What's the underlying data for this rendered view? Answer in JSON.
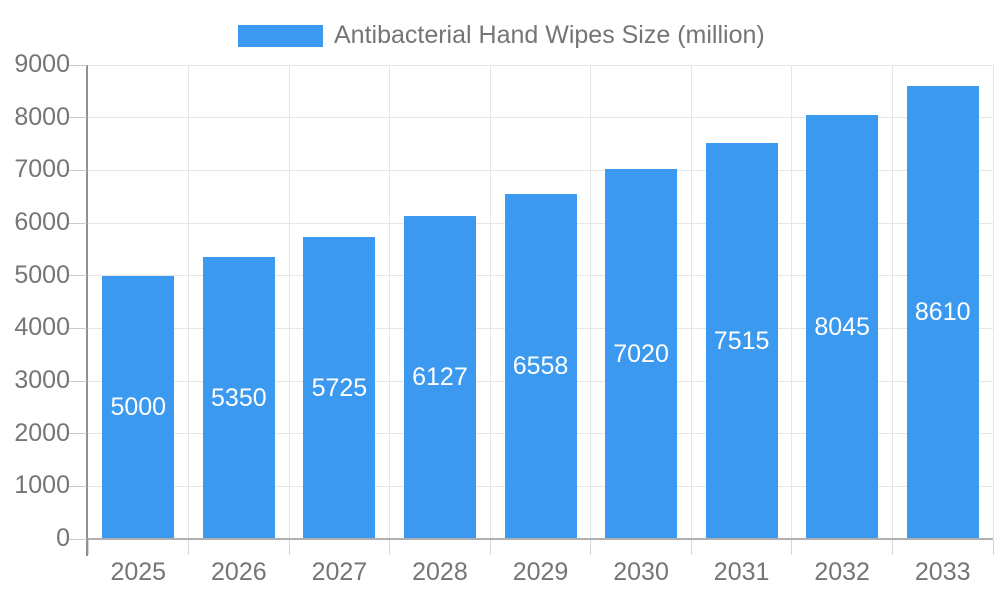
{
  "chart_data": {
    "type": "bar",
    "title": "",
    "legend": "Antibacterial Hand Wipes Size (million)",
    "legend_position": "top",
    "categories": [
      "2025",
      "2026",
      "2027",
      "2028",
      "2029",
      "2030",
      "2031",
      "2032",
      "2033"
    ],
    "series": [
      {
        "name": "Antibacterial Hand Wipes Size (million)",
        "values": [
          5000,
          5350,
          5725,
          6127,
          6558,
          7020,
          7515,
          8045,
          8610
        ]
      }
    ],
    "bar_labels_shown": true,
    "xlabel": "",
    "ylabel": "",
    "ylim": [
      0,
      9000
    ],
    "ytick_interval": 1000,
    "grid": true,
    "colors": {
      "bar": "#3B9AEF",
      "bar_label_text": "#FFFFFF",
      "axis_text": "#757575",
      "gridline": "#E6E6E6",
      "y_axis_line": "#909090",
      "x_axis_line": "#B0B0B0",
      "background": "#FFFFFF"
    }
  }
}
